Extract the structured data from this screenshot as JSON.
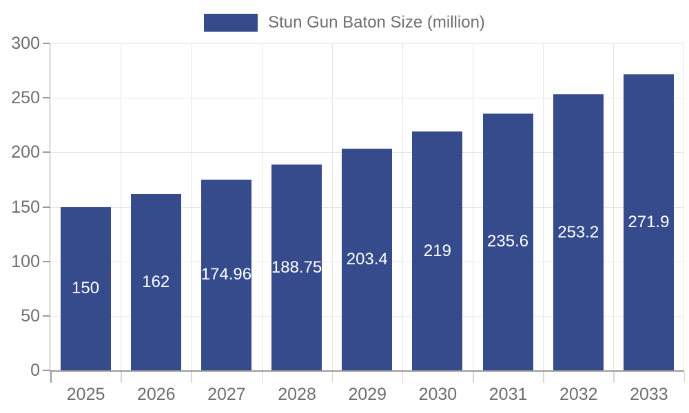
{
  "legend": {
    "label": "Stun Gun Baton Size (million)"
  },
  "colors": {
    "bar": "#364B8C",
    "axis": "#9b9b9b",
    "grid": "#e6e6e6",
    "tick_text": "#6e6e6e",
    "bar_label_text": "#ffffff",
    "background": "#ffffff"
  },
  "chart_data": {
    "type": "bar",
    "title": "Stun Gun Baton Size (million)",
    "series_name": "Stun Gun Baton Size (million)",
    "categories": [
      "2025",
      "2026",
      "2027",
      "2028",
      "2029",
      "2030",
      "2031",
      "2032",
      "2033"
    ],
    "values": [
      150,
      162,
      174.96,
      188.75,
      203.4,
      219,
      235.6,
      253.2,
      271.9
    ],
    "xlabel": "",
    "ylabel": "",
    "ylim": [
      0,
      300
    ],
    "yticks": [
      0,
      50,
      100,
      150,
      200,
      250,
      300
    ],
    "grid": true,
    "legend_position": "top-center",
    "bar_color": "#364B8C",
    "value_label_position": "inside-center"
  }
}
